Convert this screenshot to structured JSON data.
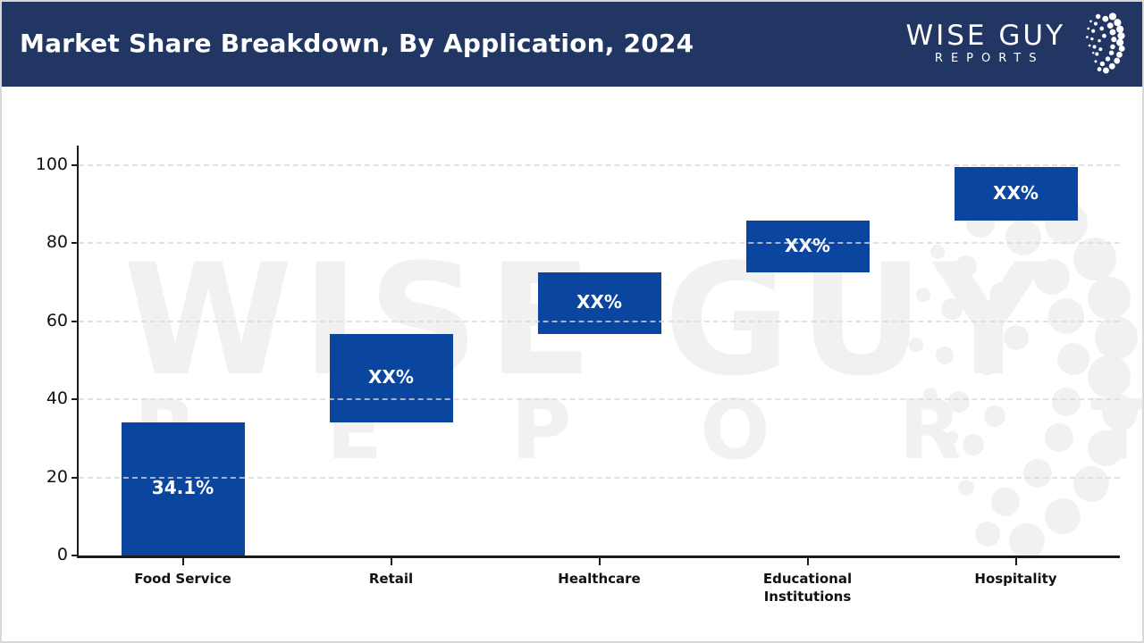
{
  "header": {
    "logo": {
      "line1": "WISE GUY",
      "line2": "REPORTS"
    }
  },
  "watermark": {
    "line1": "WISE GUY",
    "line2": "REPORTS"
  },
  "colors": {
    "header_bg": "#213663",
    "bar": "#0a46a0",
    "bar_label": "#ffffff",
    "grid": "#d9d9d9",
    "axis": "#1a1a1a",
    "watermark": "#f1f1f1"
  },
  "chart_data": {
    "type": "bar",
    "subtype": "waterfall-cumulative",
    "title": "Market Share Breakdown, By Application, 2024",
    "categories": [
      "Food Service",
      "Retail",
      "Healthcare",
      "Educational Institutions",
      "Hospitality"
    ],
    "segments": [
      {
        "category": "Food Service",
        "start": 0,
        "end": 34.1,
        "label": "34.1%"
      },
      {
        "category": "Retail",
        "start": 34.1,
        "end": 56.8,
        "label": "XX%"
      },
      {
        "category": "Healthcare",
        "start": 56.8,
        "end": 72.5,
        "label": "XX%"
      },
      {
        "category": "Educational Institutions",
        "start": 72.5,
        "end": 85.8,
        "label": "XX%"
      },
      {
        "category": "Hospitality",
        "start": 85.8,
        "end": 99.5,
        "label": "XX%"
      }
    ],
    "xlabel": "",
    "ylabel": "",
    "yticks": [
      0,
      20,
      40,
      60,
      80,
      100
    ],
    "ylim": [
      0,
      105
    ],
    "grid": "horizontal-dashed",
    "legend": "none"
  }
}
